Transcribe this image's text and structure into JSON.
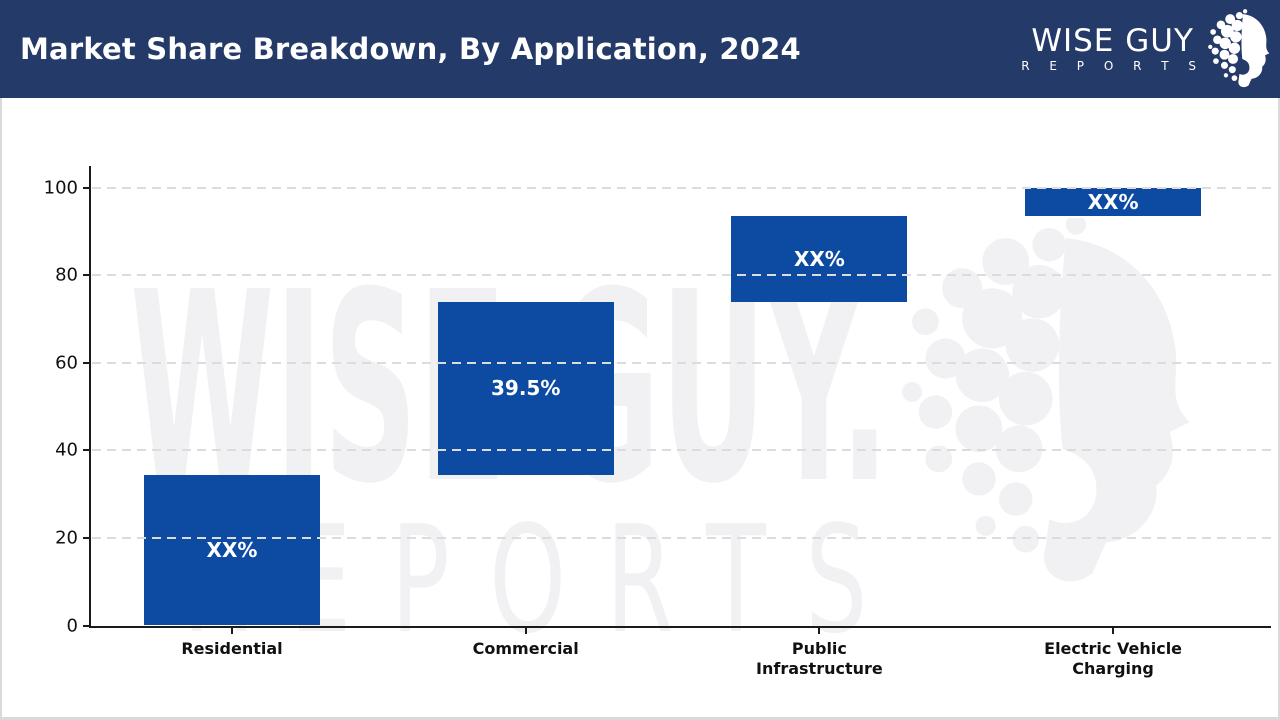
{
  "header": {
    "title": "Market Share Breakdown, By Application, 2024",
    "bg_color": "#243a68",
    "logo": {
      "line1": "WISE GUY",
      "line2": "R E P O R T S"
    }
  },
  "watermark": {
    "line1": "WISE GUY.",
    "line2": "REPORTS"
  },
  "chart_data": {
    "type": "bar",
    "subtype": "waterfall",
    "title": "Market Share Breakdown, By Application, 2024",
    "categories": [
      "Residential",
      "Commercial",
      "Public\nInfrastructure",
      "Electric Vehicle\nCharging"
    ],
    "series": [
      {
        "name": "Market Share (%)",
        "segments": [
          {
            "category": "Residential",
            "start": 0,
            "end": 34.4,
            "label": "XX%"
          },
          {
            "category": "Commercial",
            "start": 34.4,
            "end": 73.9,
            "label": "39.5%"
          },
          {
            "category": "Public Infrastructure",
            "start": 73.9,
            "end": 93.5,
            "label": "XX%"
          },
          {
            "category": "Electric Vehicle Charging",
            "start": 93.5,
            "end": 100,
            "label": "XX%"
          }
        ]
      }
    ],
    "xlabel": "",
    "ylabel": "",
    "ylim": [
      0,
      100
    ],
    "yticks": [
      0,
      20,
      40,
      60,
      80,
      100
    ],
    "grid": "horizontal-dashed",
    "legend": "none",
    "bar_color": "#0d4ba3",
    "bar_label_color": "#ffffff"
  }
}
